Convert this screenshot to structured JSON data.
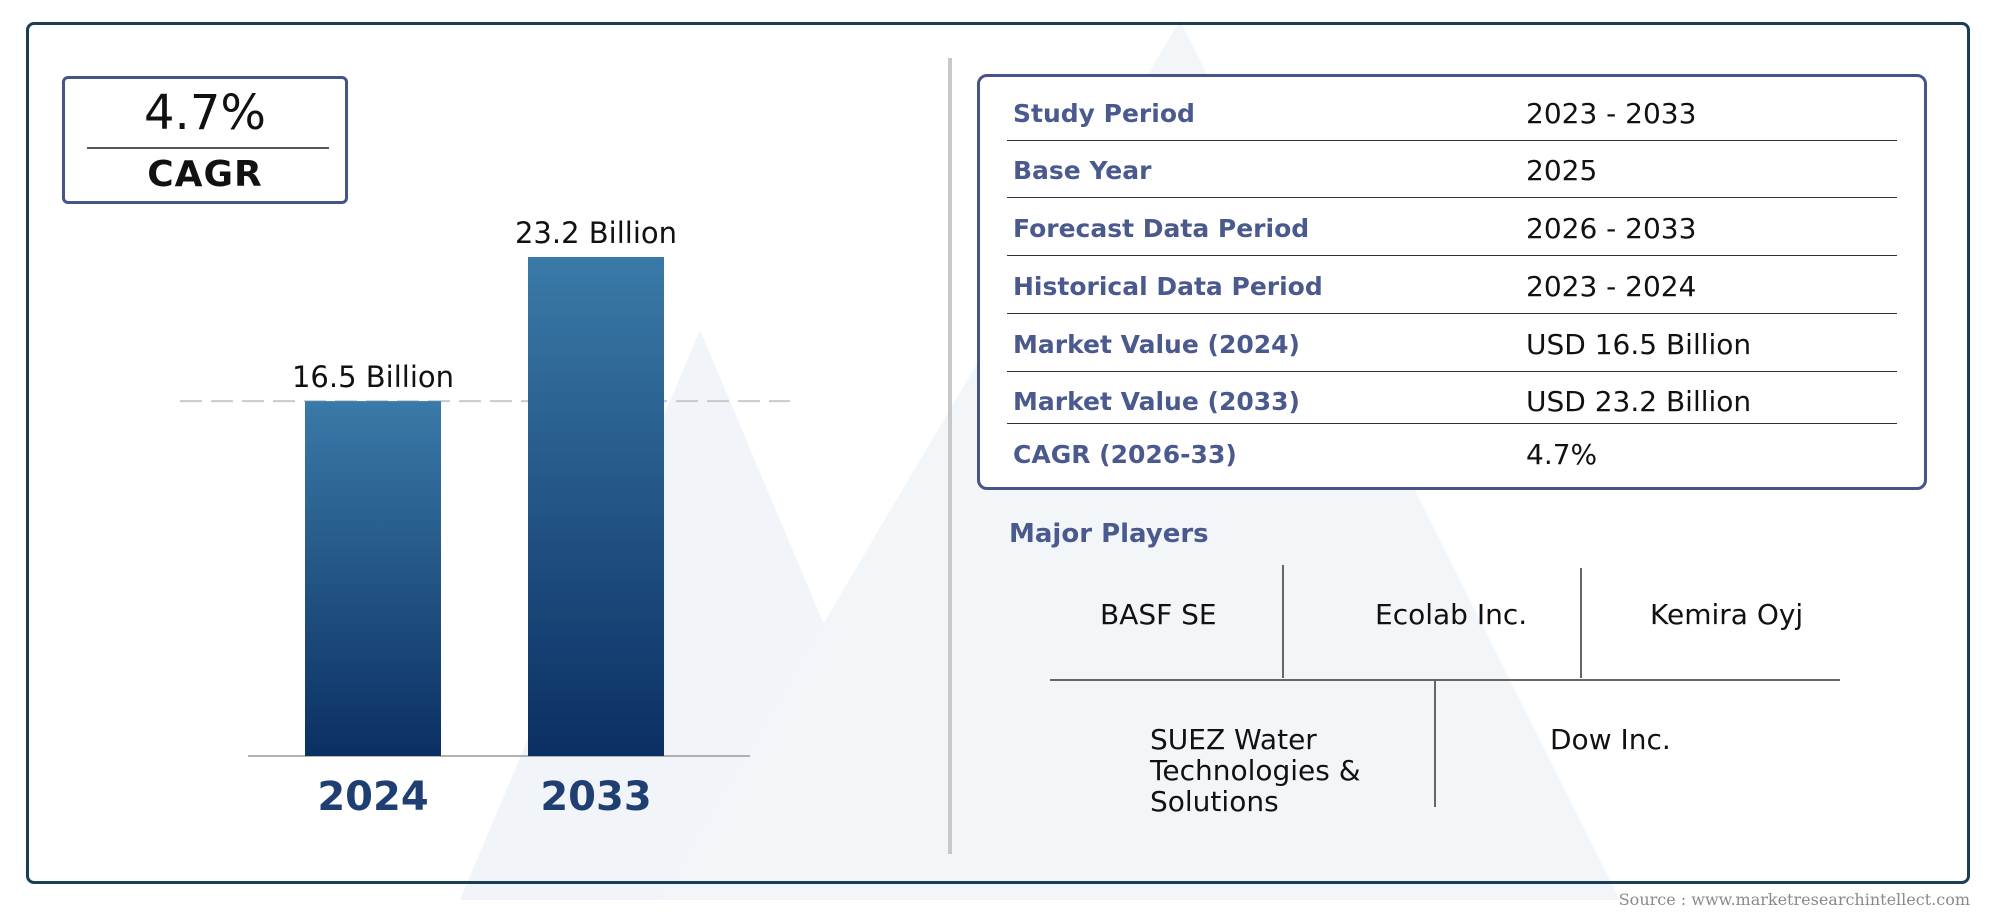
{
  "colors": {
    "bar_top": "#3a7aa8",
    "bar_bottom": "#0b2f63",
    "label_blue": "#4a5a8e",
    "frame": "#1c3d56"
  },
  "cagr_box": {
    "value": "4.7%",
    "label": "CAGR"
  },
  "chart_data": {
    "type": "bar",
    "categories": [
      "2024",
      "2033"
    ],
    "values": [
      16.5,
      23.2
    ],
    "data_labels": [
      "16.5 Billion",
      "23.2 Billion"
    ],
    "title": "",
    "xlabel": "",
    "ylabel": "",
    "ylim": [
      0,
      23.2
    ],
    "grid": false,
    "reference_line": {
      "value": 16.5,
      "style": "dashed"
    }
  },
  "info_table": [
    {
      "label": "Study Period",
      "value": "2023 - 2033"
    },
    {
      "label": "Base Year",
      "value": "2025"
    },
    {
      "label": "Forecast Data Period",
      "value": "2026 - 2033"
    },
    {
      "label": "Historical Data Period",
      "value": "2023 - 2024"
    },
    {
      "label": "Market Value (2024)",
      "value": "USD 16.5 Billion"
    },
    {
      "label": "Market Value (2033)",
      "value": "USD 23.2 Billion"
    },
    {
      "label": "CAGR (2026-33)",
      "value": "4.7%"
    }
  ],
  "major_players": {
    "title": "Major Players",
    "names": [
      "BASF SE",
      "Ecolab Inc.",
      "Kemira Oyj",
      "SUEZ Water Technologies & Solutions",
      "Dow Inc."
    ]
  },
  "source": "Source : www.marketresearchintellect.com"
}
